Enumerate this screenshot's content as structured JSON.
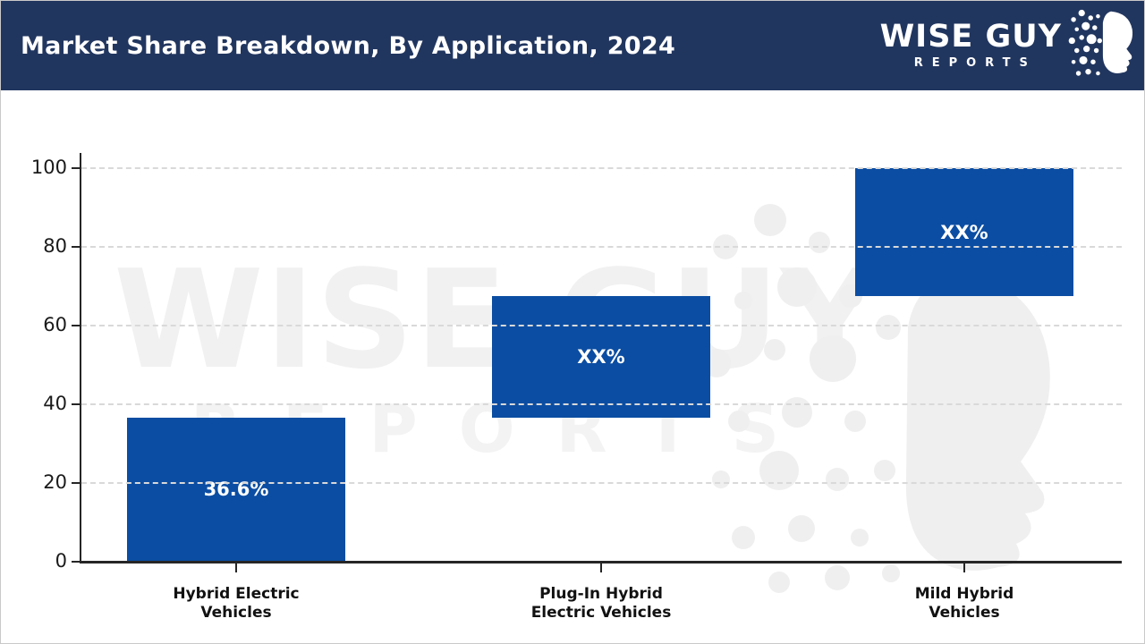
{
  "header": {
    "title": "Market Share Breakdown, By Application, 2024",
    "bg_color": "#21365f",
    "logo": {
      "line1": "WISE GUY",
      "line2": "REPORTS"
    }
  },
  "watermark": {
    "line1": "WISE GUY",
    "line2": "REPORTS"
  },
  "chart_data": {
    "type": "bar",
    "subtype": "stepped-waterfall-segments",
    "title": "Market Share Breakdown, By Application, 2024",
    "categories": [
      {
        "line1": "Hybrid Electric",
        "line2": "Vehicles"
      },
      {
        "line1": "Plug-In Hybrid",
        "line2": "Electric Vehicles"
      },
      {
        "line1": "Mild Hybrid",
        "line2": "Vehicles"
      }
    ],
    "segments": [
      {
        "start": 0,
        "end": 36.6,
        "label": "36.6%"
      },
      {
        "start": 36.6,
        "end": 67.5,
        "label": "XX%"
      },
      {
        "start": 67.5,
        "end": 100,
        "label": "XX%"
      }
    ],
    "ylim": [
      0,
      100
    ],
    "yticks": [
      0,
      20,
      40,
      60,
      80,
      100
    ],
    "grid": "horizontal-dashed",
    "legend": "none",
    "bar_color": "#0b4da2",
    "grid_color": "#d9d9d9",
    "axis_color": "#262626",
    "label_color": "#ffffff"
  }
}
